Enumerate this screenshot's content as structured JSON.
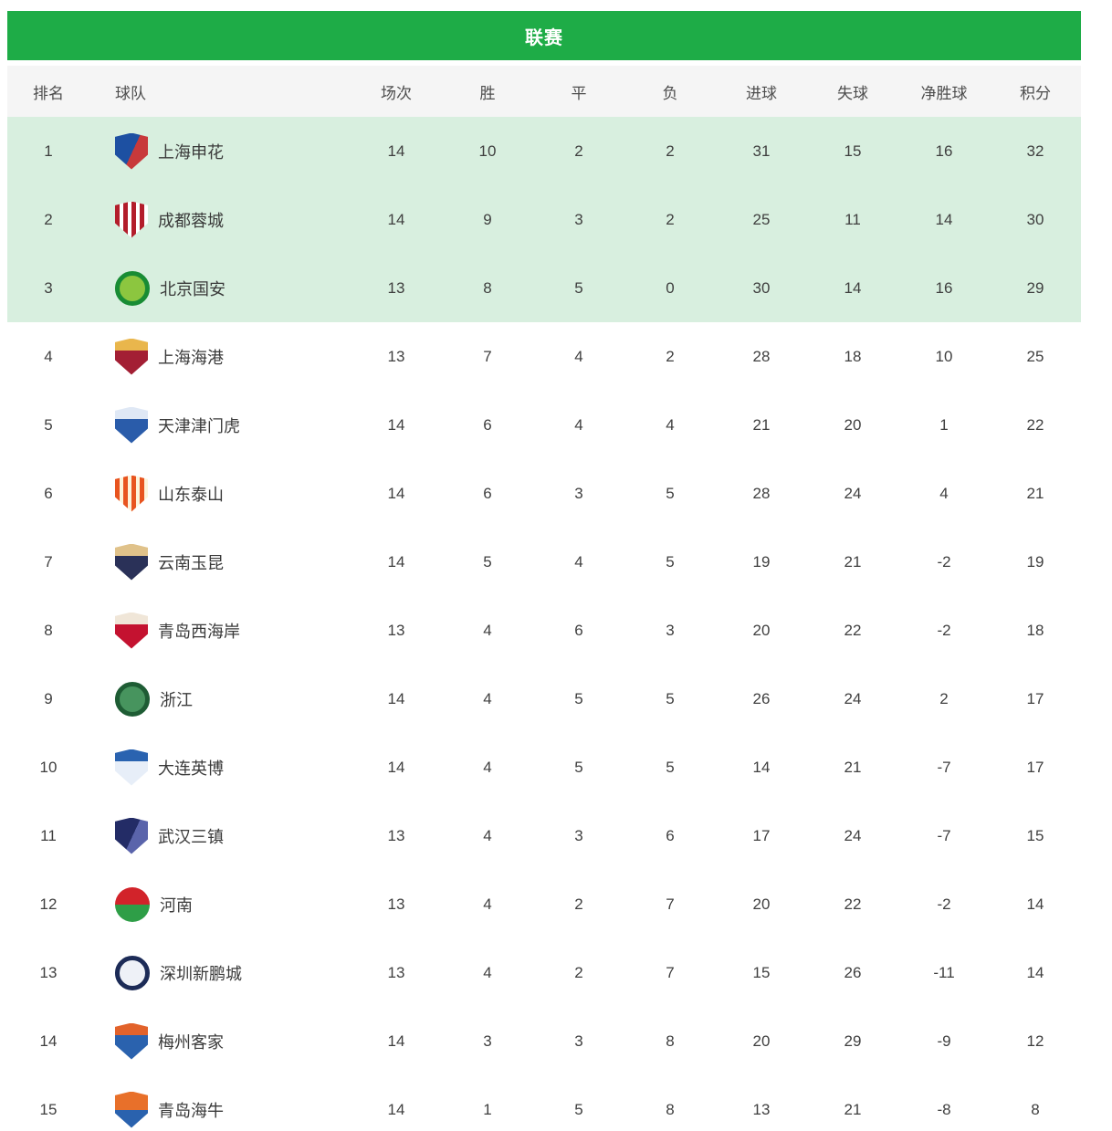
{
  "header": {
    "title": "联赛"
  },
  "colors": {
    "accent_green": "#1eac47",
    "highlight_row_bg": "#d8efdf",
    "header_row_bg": "#f5f5f5"
  },
  "table": {
    "highlight_top_n": 3,
    "columns": [
      {
        "key": "rank",
        "label": "排名"
      },
      {
        "key": "team",
        "label": "球队"
      },
      {
        "key": "played",
        "label": "场次"
      },
      {
        "key": "win",
        "label": "胜"
      },
      {
        "key": "draw",
        "label": "平"
      },
      {
        "key": "loss",
        "label": "负"
      },
      {
        "key": "gf",
        "label": "进球"
      },
      {
        "key": "ga",
        "label": "失球"
      },
      {
        "key": "gd",
        "label": "净胜球"
      },
      {
        "key": "pts",
        "label": "积分"
      }
    ],
    "rows": [
      {
        "rank": 1,
        "team": "上海申花",
        "logo": {
          "icon": "shanghai-shenhua-crest",
          "shape": "shield",
          "pattern": "split-d",
          "colors": [
            "#1d50a2",
            "#c8393b"
          ]
        },
        "played": 14,
        "win": 10,
        "draw": 2,
        "loss": 2,
        "gf": 31,
        "ga": 15,
        "gd": 16,
        "pts": 32
      },
      {
        "rank": 2,
        "team": "成都蓉城",
        "logo": {
          "icon": "chengdu-rongcheng-crest",
          "shape": "shield",
          "pattern": "stripes-v",
          "colors": [
            "#b31d2b",
            "#ffffff"
          ]
        },
        "played": 14,
        "win": 9,
        "draw": 3,
        "loss": 2,
        "gf": 25,
        "ga": 11,
        "gd": 14,
        "pts": 30
      },
      {
        "rank": 3,
        "team": "北京国安",
        "logo": {
          "icon": "beijing-guoan-crest",
          "shape": "circle",
          "pattern": "ring",
          "colors": [
            "#188c34",
            "#8cc63f"
          ]
        },
        "played": 13,
        "win": 8,
        "draw": 5,
        "loss": 0,
        "gf": 30,
        "ga": 14,
        "gd": 16,
        "pts": 29
      },
      {
        "rank": 4,
        "team": "上海海港",
        "logo": {
          "icon": "shanghai-port-crest",
          "shape": "shield",
          "pattern": "band-top",
          "colors": [
            "#a31f34",
            "#e9b64c"
          ]
        },
        "played": 13,
        "win": 7,
        "draw": 4,
        "loss": 2,
        "gf": 28,
        "ga": 18,
        "gd": 10,
        "pts": 25
      },
      {
        "rank": 5,
        "team": "天津津门虎",
        "logo": {
          "icon": "tianjin-jinmen-tiger-crest",
          "shape": "shield",
          "pattern": "band-top",
          "colors": [
            "#2a5caa",
            "#dfe8f5"
          ]
        },
        "played": 14,
        "win": 6,
        "draw": 4,
        "loss": 4,
        "gf": 21,
        "ga": 20,
        "gd": 1,
        "pts": 22
      },
      {
        "rank": 6,
        "team": "山东泰山",
        "logo": {
          "icon": "shandong-taishan-crest",
          "shape": "shield",
          "pattern": "stripes-v",
          "colors": [
            "#e8541f",
            "#fdf3da"
          ]
        },
        "played": 14,
        "win": 6,
        "draw": 3,
        "loss": 5,
        "gf": 28,
        "ga": 24,
        "gd": 4,
        "pts": 21
      },
      {
        "rank": 7,
        "team": "云南玉昆",
        "logo": {
          "icon": "yunnan-yukun-crest",
          "shape": "shield",
          "pattern": "band-top",
          "colors": [
            "#2a3158",
            "#e0c28a"
          ]
        },
        "played": 14,
        "win": 5,
        "draw": 4,
        "loss": 5,
        "gf": 19,
        "ga": 21,
        "gd": -2,
        "pts": 19
      },
      {
        "rank": 8,
        "team": "青岛西海岸",
        "logo": {
          "icon": "qingdao-west-coast-crest",
          "shape": "shield",
          "pattern": "band-top",
          "colors": [
            "#c41230",
            "#f0e6d8"
          ]
        },
        "played": 13,
        "win": 4,
        "draw": 6,
        "loss": 3,
        "gf": 20,
        "ga": 22,
        "gd": -2,
        "pts": 18
      },
      {
        "rank": 9,
        "team": "浙江",
        "logo": {
          "icon": "zhejiang-crest",
          "shape": "circle",
          "pattern": "ring",
          "colors": [
            "#1e5c34",
            "#47945e"
          ]
        },
        "played": 14,
        "win": 4,
        "draw": 5,
        "loss": 5,
        "gf": 26,
        "ga": 24,
        "gd": 2,
        "pts": 17
      },
      {
        "rank": 10,
        "team": "大连英博",
        "logo": {
          "icon": "dalian-yingbo-crest",
          "shape": "shield",
          "pattern": "band-top",
          "colors": [
            "#e7eef8",
            "#2a63b0"
          ]
        },
        "played": 14,
        "win": 4,
        "draw": 5,
        "loss": 5,
        "gf": 14,
        "ga": 21,
        "gd": -7,
        "pts": 17
      },
      {
        "rank": 11,
        "team": "武汉三镇",
        "logo": {
          "icon": "wuhan-three-towns-crest",
          "shape": "shield",
          "pattern": "split-d",
          "colors": [
            "#232c66",
            "#5a64ab"
          ]
        },
        "played": 13,
        "win": 4,
        "draw": 3,
        "loss": 6,
        "gf": 17,
        "ga": 24,
        "gd": -7,
        "pts": 15
      },
      {
        "rank": 12,
        "team": "河南",
        "logo": {
          "icon": "henan-crest",
          "shape": "circle",
          "pattern": "split-h",
          "colors": [
            "#d2232a",
            "#2e9e47"
          ]
        },
        "played": 13,
        "win": 4,
        "draw": 2,
        "loss": 7,
        "gf": 20,
        "ga": 22,
        "gd": -2,
        "pts": 14
      },
      {
        "rank": 13,
        "team": "深圳新鹏城",
        "logo": {
          "icon": "shenzhen-peng-city-crest",
          "shape": "circle",
          "pattern": "ring",
          "colors": [
            "#1c2b57",
            "#eef1f7"
          ]
        },
        "played": 13,
        "win": 4,
        "draw": 2,
        "loss": 7,
        "gf": 15,
        "ga": 26,
        "gd": -11,
        "pts": 14
      },
      {
        "rank": 14,
        "team": "梅州客家",
        "logo": {
          "icon": "meizhou-hakka-crest",
          "shape": "shield",
          "pattern": "band-top",
          "colors": [
            "#2a62ae",
            "#e2622a"
          ]
        },
        "played": 14,
        "win": 3,
        "draw": 3,
        "loss": 8,
        "gf": 20,
        "ga": 29,
        "gd": -9,
        "pts": 12
      },
      {
        "rank": 15,
        "team": "青岛海牛",
        "logo": {
          "icon": "qingdao-hainiu-crest",
          "shape": "shield",
          "pattern": "split-h",
          "colors": [
            "#e8702a",
            "#2a62ae"
          ]
        },
        "played": 14,
        "win": 1,
        "draw": 5,
        "loss": 8,
        "gf": 13,
        "ga": 21,
        "gd": -8,
        "pts": 8
      }
    ]
  }
}
